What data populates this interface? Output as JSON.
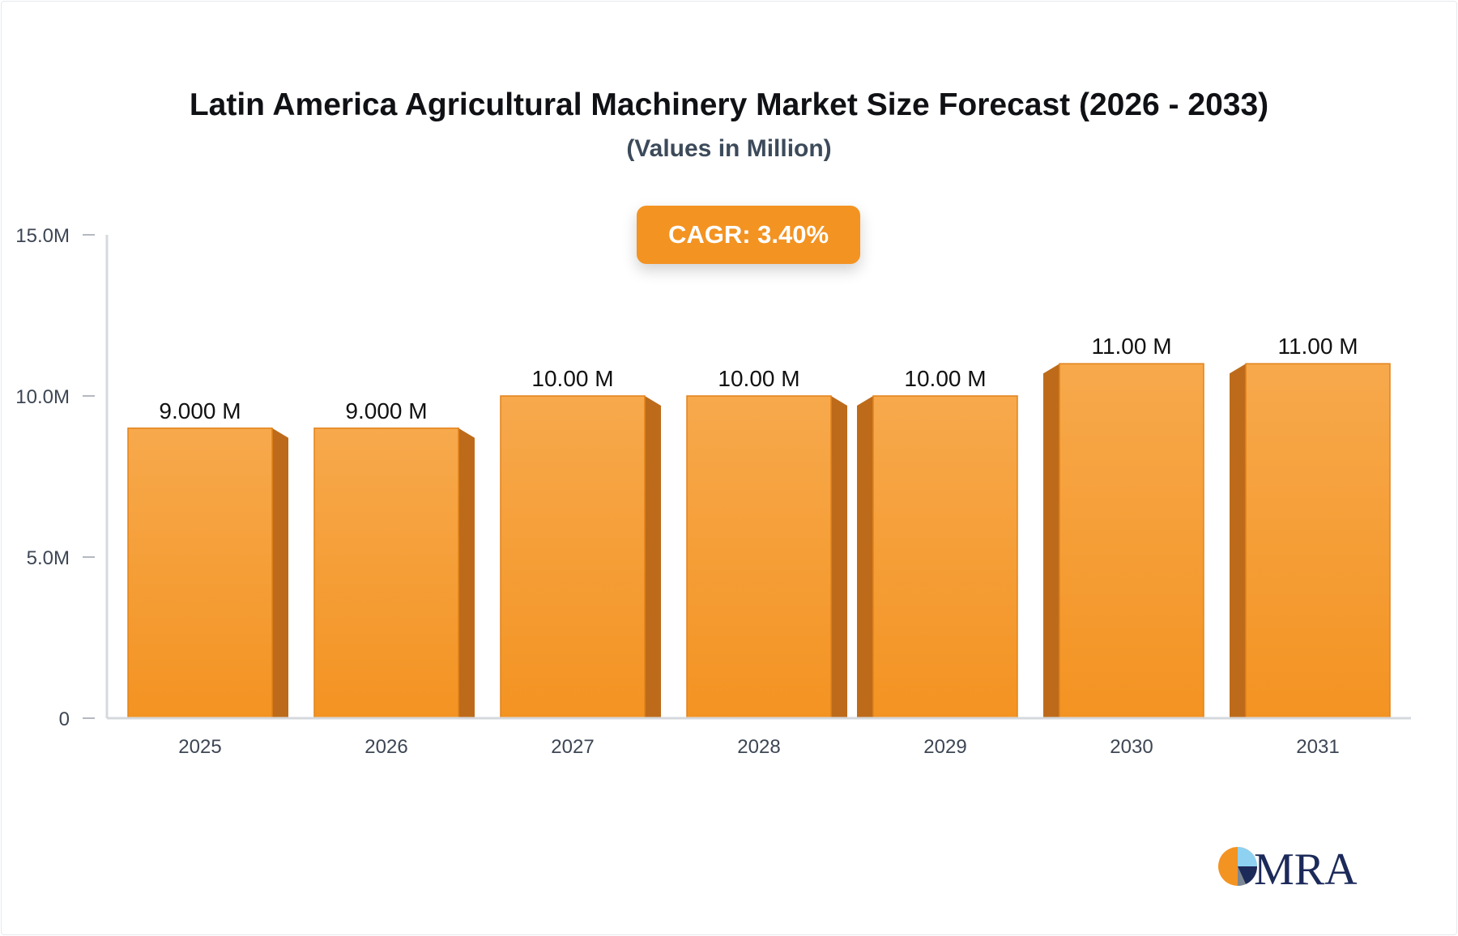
{
  "chart_data": {
    "type": "bar",
    "title": "Latin America Agricultural Machinery Market Size Forecast (2026 - 2033)",
    "subtitle": "(Values in Million)",
    "categories": [
      "2025",
      "2026",
      "2027",
      "2028",
      "2029",
      "2030",
      "2031"
    ],
    "values": [
      9,
      9,
      10,
      10,
      10,
      11,
      11
    ],
    "data_labels": [
      "9.000 M",
      "9.000 M",
      "10.00 M",
      "10.00 M",
      "10.00 M",
      "11.00 M",
      "11.00 M"
    ],
    "ylim": [
      0,
      15
    ],
    "yticks": [
      0,
      5,
      10,
      15
    ],
    "ytick_labels": [
      "0",
      "5.0M",
      "10.0M",
      "15.0M"
    ],
    "xlabel": "",
    "ylabel": "",
    "grid": false,
    "legend": "none",
    "annotation": "CAGR: 3.40%",
    "colors": {
      "bar_top": "#f7a94c",
      "bar_bottom": "#f39322",
      "bar_side": "#bd6b1a",
      "bar_border": "#e2831b",
      "axis": "#d5d8dd",
      "tick_text": "#3d4654",
      "label_text": "#111111"
    }
  },
  "logo": {
    "text": "MRA"
  }
}
